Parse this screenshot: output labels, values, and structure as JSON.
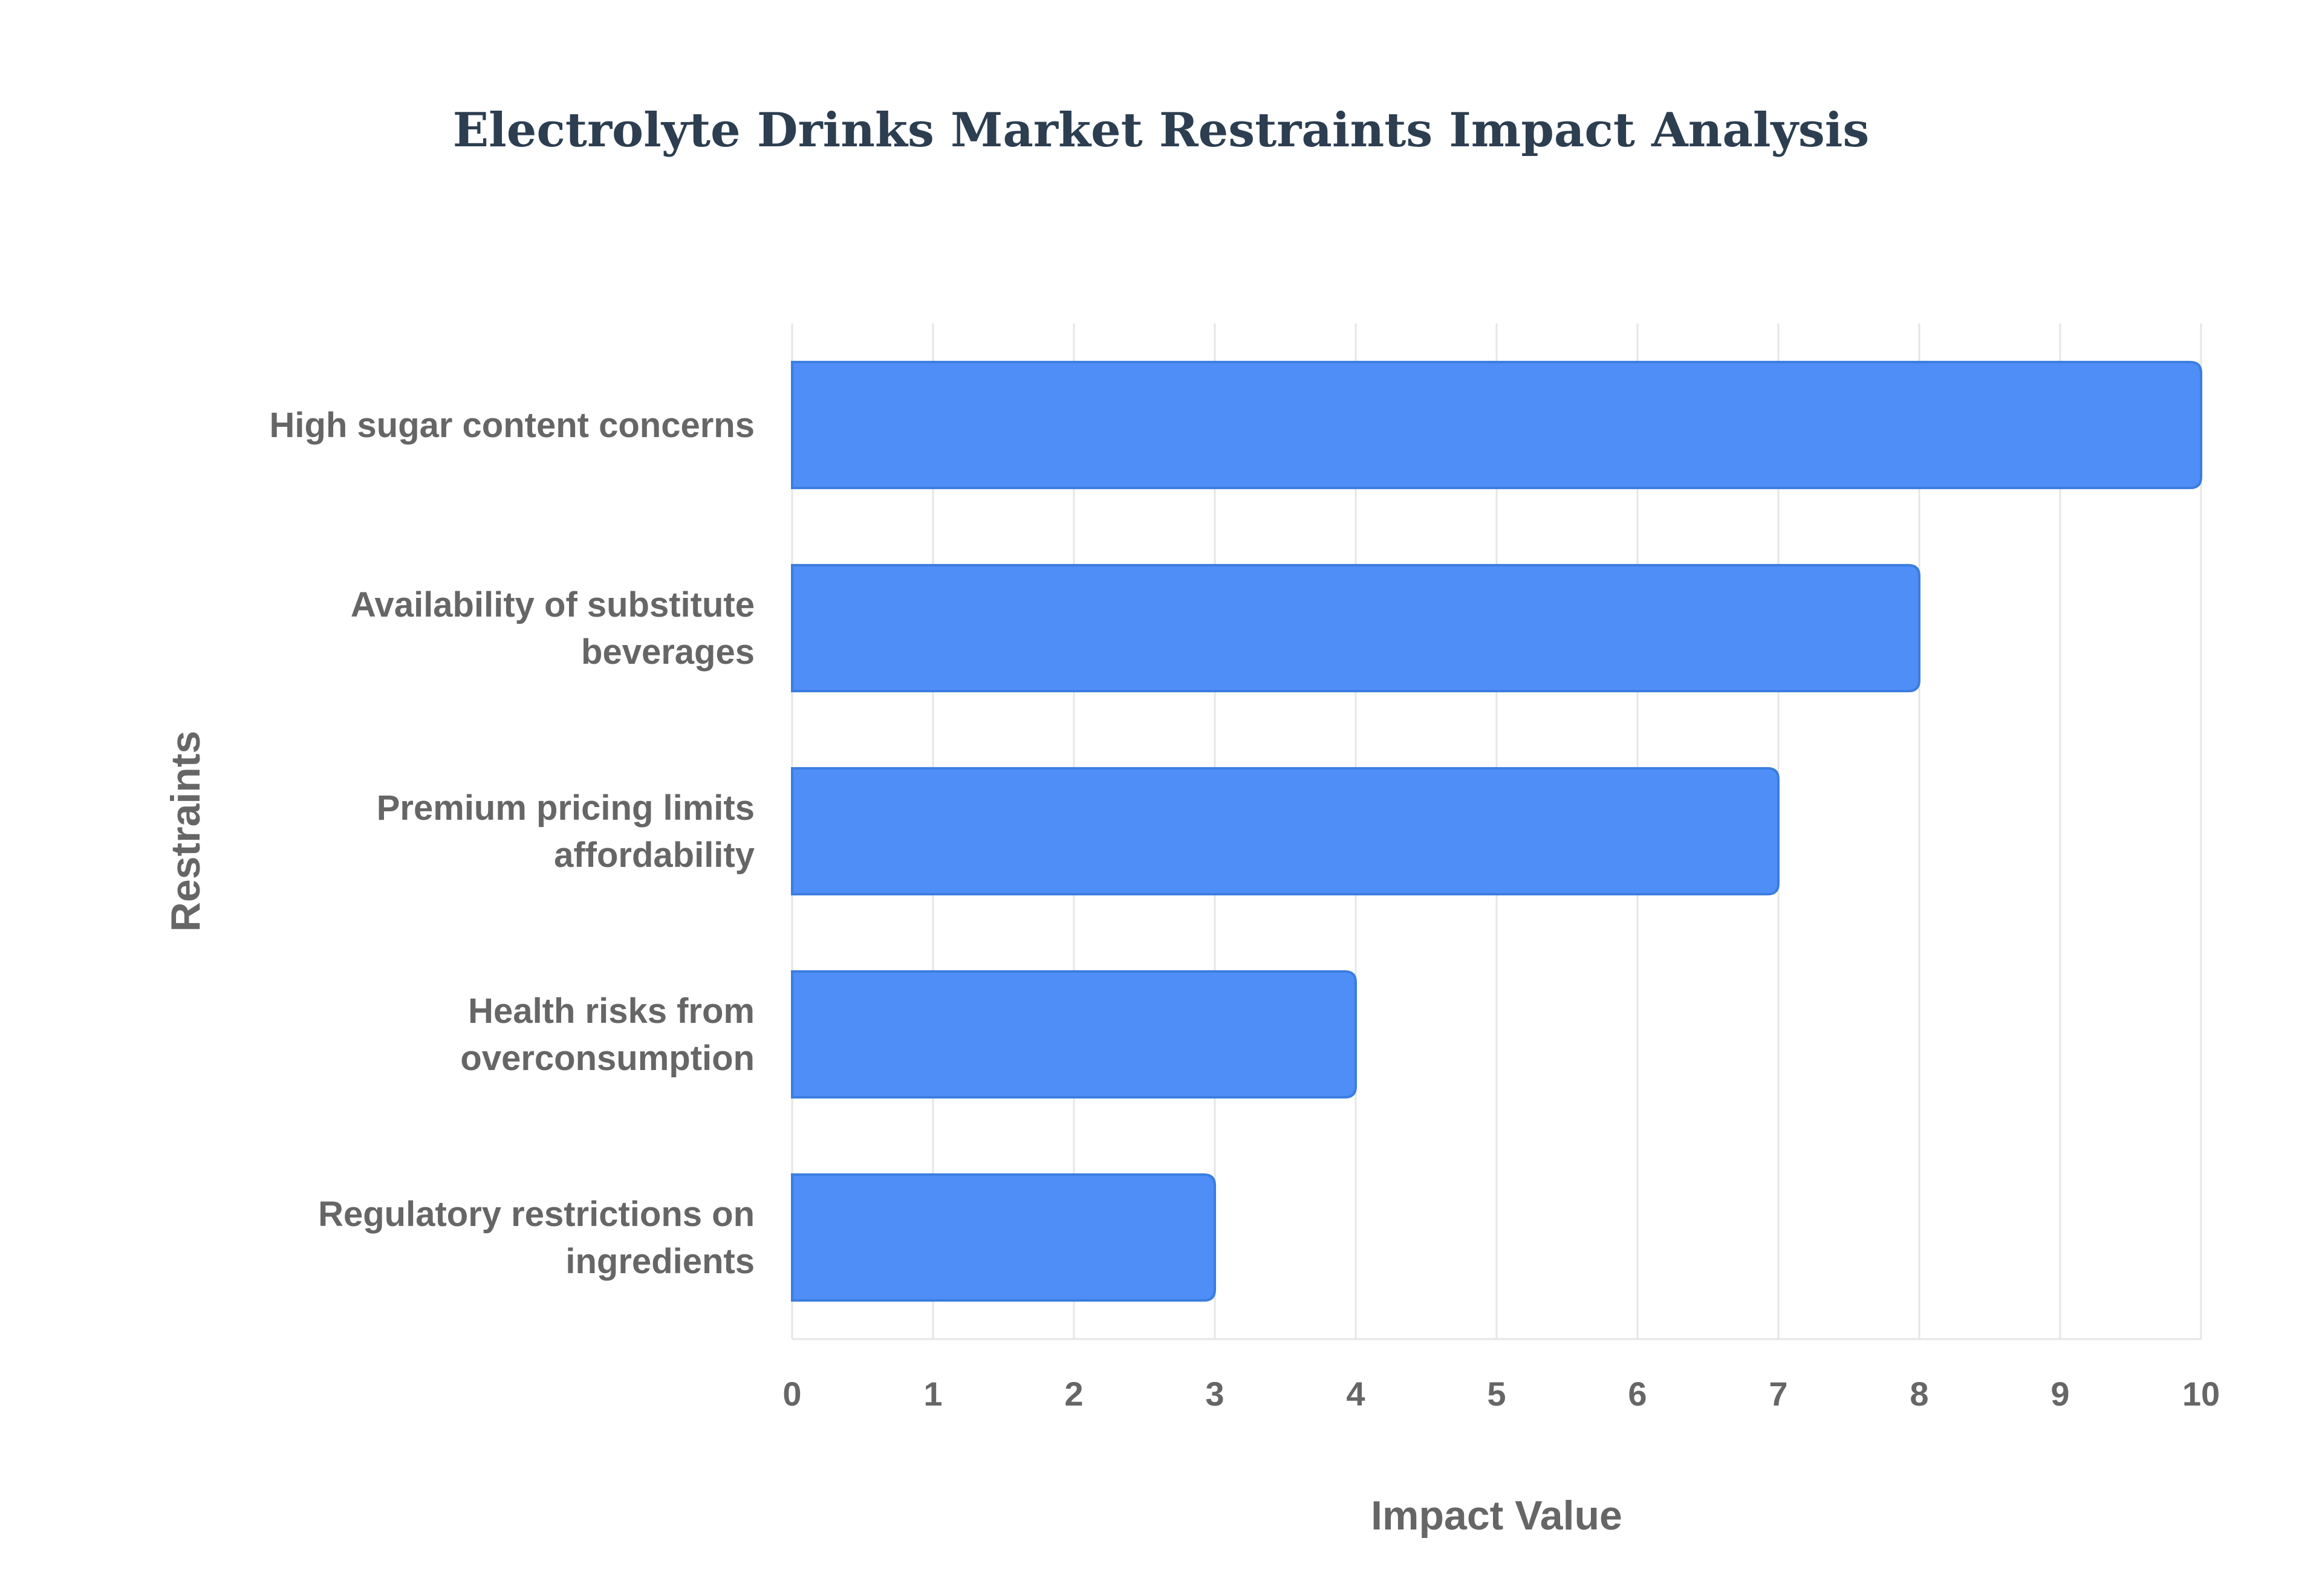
{
  "chart_data": {
    "type": "bar",
    "orientation": "horizontal",
    "title": "Electrolyte Drinks Market Restraints Impact Analysis",
    "xlabel": "Impact Value",
    "ylabel": "Restraints",
    "categories": [
      [
        "High sugar content concerns"
      ],
      [
        "Availability of substitute",
        "beverages"
      ],
      [
        "Premium pricing limits",
        "affordability"
      ],
      [
        "Health risks from",
        "overconsumption"
      ],
      [
        "Regulatory restrictions on",
        "ingredients"
      ]
    ],
    "values": [
      10,
      8,
      7,
      4,
      3
    ],
    "xlim": [
      0,
      10
    ],
    "xticks": [
      "0",
      "1",
      "2",
      "3",
      "4",
      "5",
      "6",
      "7",
      "8",
      "9",
      "10"
    ],
    "grid": true,
    "legend": false,
    "bar_color": "#4f8ef7",
    "bar_border_color": "#3b7de0"
  }
}
